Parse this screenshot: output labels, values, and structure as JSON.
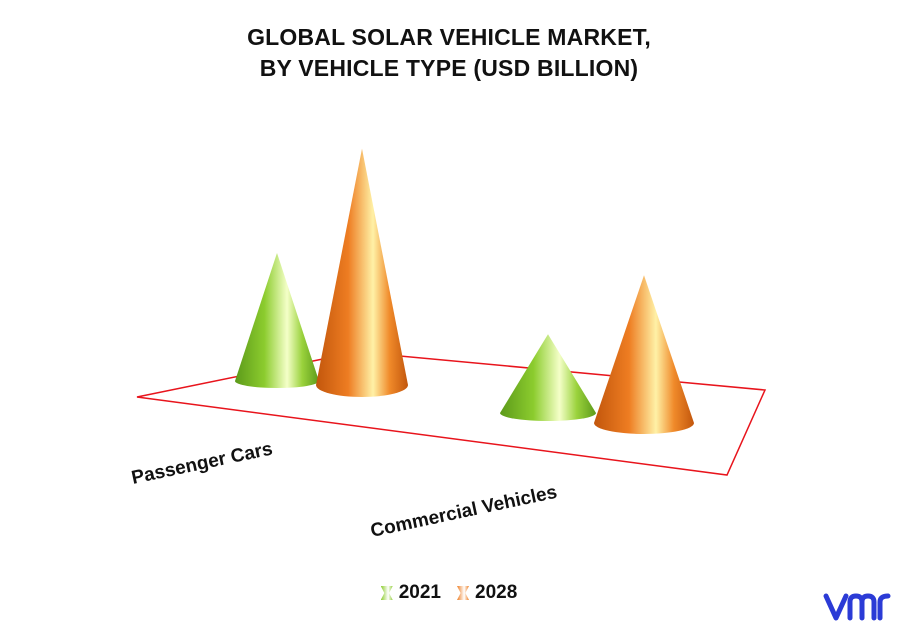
{
  "chart_data": {
    "type": "bar",
    "style": "3d-cone",
    "title_lines": [
      "GLOBAL SOLAR VEHICLE MARKET,",
      "BY VEHICLE TYPE (USD BILLION)"
    ],
    "categories": [
      "Passenger Cars",
      "Commercial Vehicles"
    ],
    "series": [
      {
        "name": "2021",
        "color": "#8ccc2e",
        "values": [
          1.3,
          0.8
        ]
      },
      {
        "name": "2028",
        "color": "#ee7d22",
        "values": [
          2.4,
          1.5
        ]
      }
    ],
    "ylim": [
      0,
      2.5
    ],
    "legend": "bottom-center",
    "grid": false,
    "floor_color": "#e8141c"
  },
  "branding": {
    "logo": "vmr-logo"
  }
}
